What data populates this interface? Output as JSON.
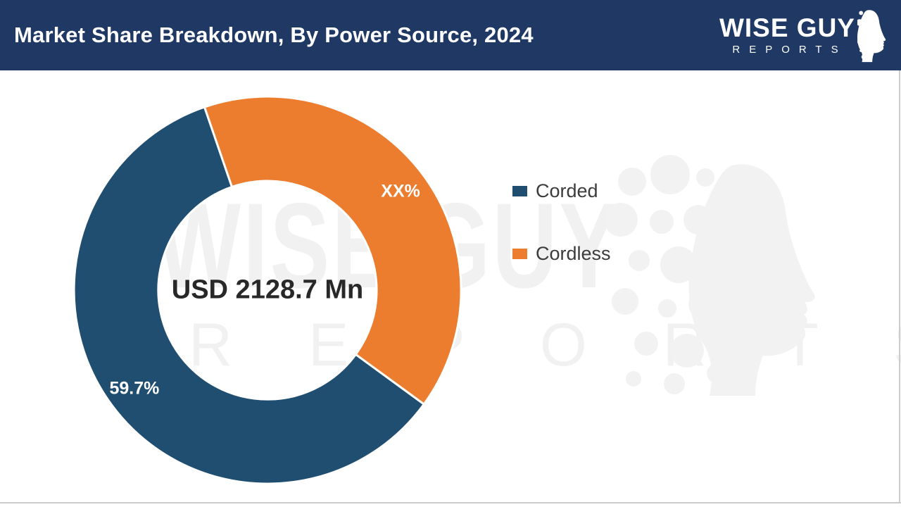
{
  "header": {
    "title": "Market Share Breakdown, By Power Source, 2024",
    "logo": {
      "line1": "WISE GUY",
      "line2": "REPORTS"
    }
  },
  "watermark": {
    "line1": "WISE GUY",
    "line2": "R E P O R T S"
  },
  "chart_data": {
    "type": "pie",
    "donut": true,
    "title": "Market Share Breakdown, By Power Source, 2024",
    "center_label": "USD 2128.7 Mn",
    "legend_position": "right",
    "start_angle_deg": 109,
    "direction": "counterclockwise",
    "inner_radius_ratio": 0.564,
    "label_radius_ratio": 0.855,
    "slices": [
      {
        "label": "Corded",
        "value": 59.7,
        "display": "59.7%",
        "color": "#1F4E70"
      },
      {
        "label": "Cordless",
        "value": 40.3,
        "display": "XX%",
        "color": "#EC7D2F"
      }
    ]
  }
}
